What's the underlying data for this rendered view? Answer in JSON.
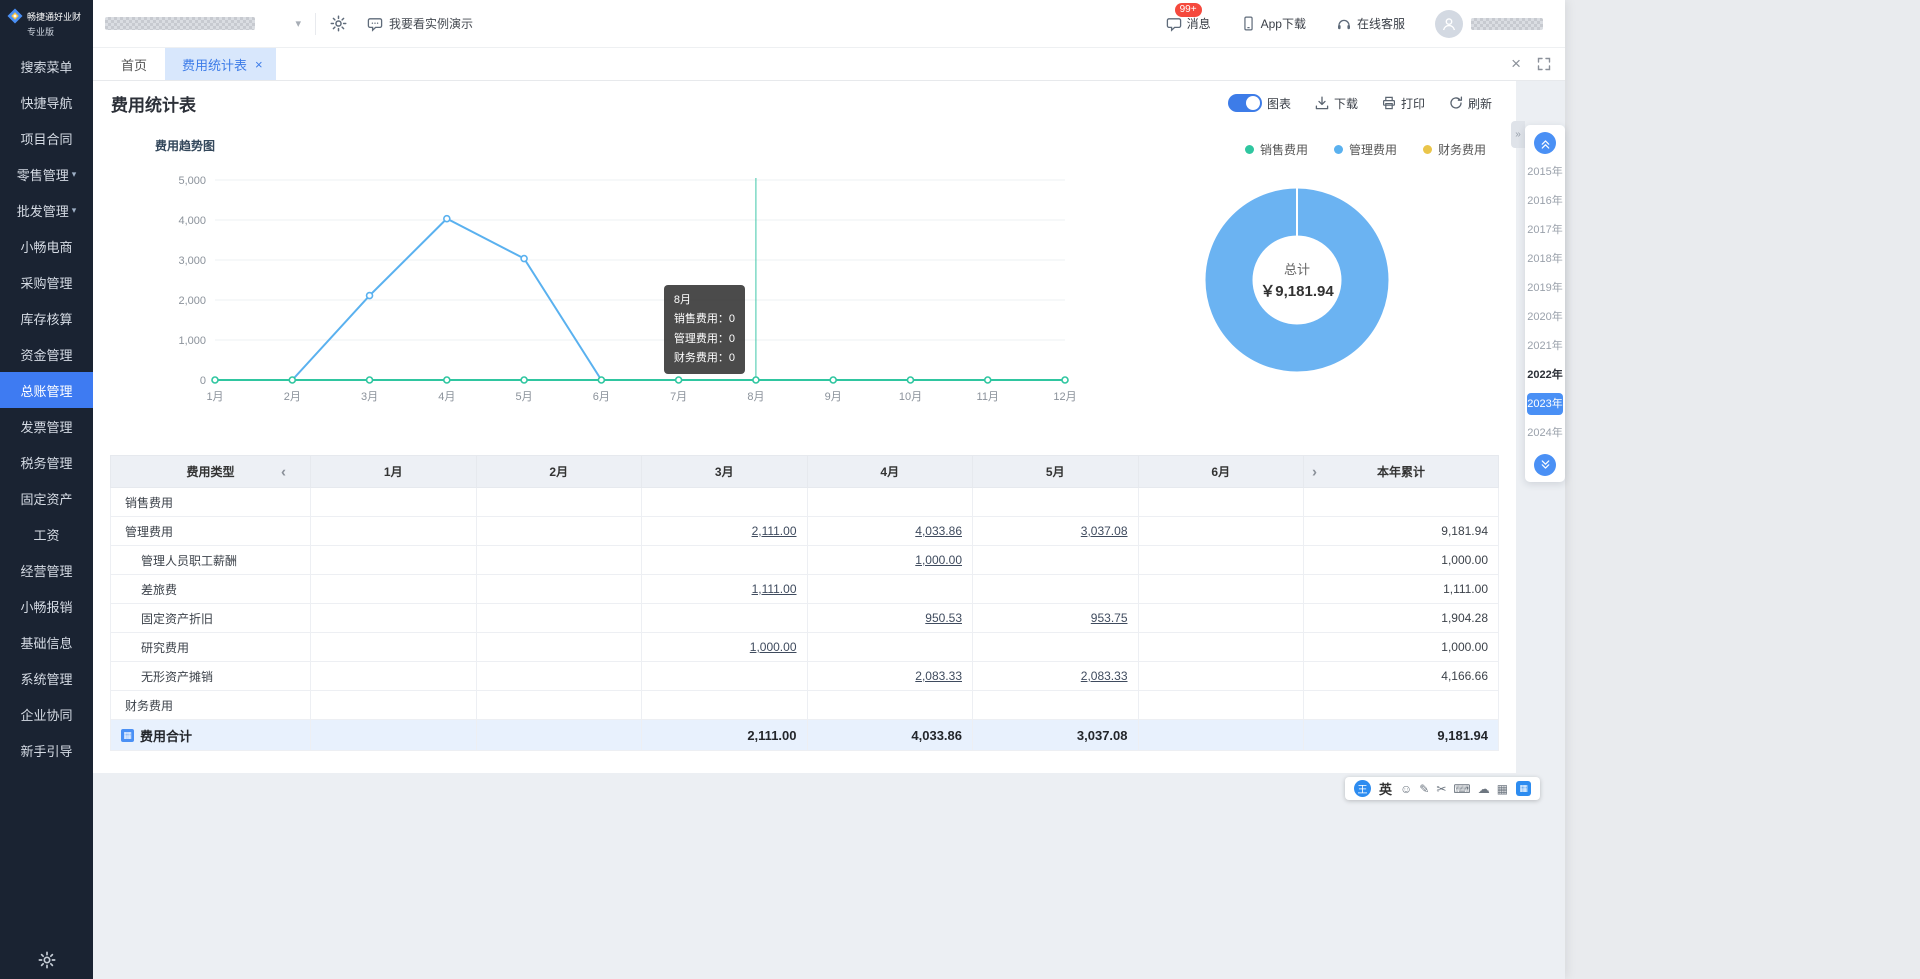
{
  "brand": {
    "name": "畅捷通好业财",
    "edition": "专业版"
  },
  "sidebar": {
    "items": [
      {
        "label": "搜索菜单"
      },
      {
        "label": "快捷导航"
      },
      {
        "label": "项目合同"
      },
      {
        "label": "零售管理",
        "expandable": true
      },
      {
        "label": "批发管理",
        "expandable": true
      },
      {
        "label": "小畅电商"
      },
      {
        "label": "采购管理"
      },
      {
        "label": "库存核算"
      },
      {
        "label": "资金管理"
      },
      {
        "label": "总账管理",
        "active": true
      },
      {
        "label": "发票管理"
      },
      {
        "label": "税务管理"
      },
      {
        "label": "固定资产"
      },
      {
        "label": "工资"
      },
      {
        "label": "经营管理"
      },
      {
        "label": "小畅报销"
      },
      {
        "label": "基础信息"
      },
      {
        "label": "系统管理"
      },
      {
        "label": "企业协同"
      },
      {
        "label": "新手引导"
      }
    ]
  },
  "topbar": {
    "demo_label": "我要看实例演示",
    "messages_label": "消息",
    "messages_badge": "99+",
    "app_download_label": "App下载",
    "online_support_label": "在线客服"
  },
  "tabs": {
    "items": [
      {
        "label": "首页",
        "active": false,
        "closable": false
      },
      {
        "label": "费用统计表",
        "active": true,
        "closable": true
      }
    ]
  },
  "page": {
    "title": "费用统计表",
    "toolbar": {
      "chart_toggle": "图表",
      "download": "下载",
      "print": "打印",
      "refresh": "刷新"
    }
  },
  "chart_data": {
    "type": "line",
    "title": "费用趋势图",
    "categories": [
      "1月",
      "2月",
      "3月",
      "4月",
      "5月",
      "6月",
      "7月",
      "8月",
      "9月",
      "10月",
      "11月",
      "12月"
    ],
    "series": [
      {
        "name": "销售费用",
        "color": "#2fc6a0",
        "values": [
          0,
          0,
          0,
          0,
          0,
          0,
          0,
          0,
          0,
          0,
          0,
          0
        ]
      },
      {
        "name": "管理费用",
        "color": "#5ab1ef",
        "values": [
          0,
          0,
          2111.0,
          4033.86,
          3037.08,
          0,
          0,
          0,
          0,
          0,
          0,
          0
        ]
      },
      {
        "name": "财务费用",
        "color": "#eac54a",
        "values": [
          0,
          0,
          0,
          0,
          0,
          0,
          0,
          0,
          0,
          0,
          0,
          0
        ]
      }
    ],
    "ylim": [
      0,
      5000
    ],
    "yticks": [
      "0",
      "1,000",
      "2,000",
      "3,000",
      "4,000",
      "5,000"
    ],
    "grid": true,
    "legend_position": "top-right",
    "tooltip": {
      "month_index": 7,
      "title": "8月",
      "lines": [
        "销售费用：0",
        "管理费用：0",
        "财务费用：0"
      ]
    }
  },
  "donut": {
    "type": "pie",
    "center_label": "总计",
    "center_value": "￥9,181.94",
    "slices": [
      {
        "name": "管理费用",
        "value": 9181.94,
        "color": "#6bb3f2"
      }
    ]
  },
  "year_panel": {
    "years": [
      "2015年",
      "2016年",
      "2017年",
      "2018年",
      "2019年",
      "2020年",
      "2021年",
      "2022年",
      "2023年",
      "2024年"
    ],
    "selected": "2023年",
    "highlighted": "2022年"
  },
  "table": {
    "headers": [
      "费用类型",
      "1月",
      "2月",
      "3月",
      "4月",
      "5月",
      "6月",
      "本年累计"
    ],
    "rows": [
      {
        "label": "销售费用",
        "indent": 0,
        "months": [
          "",
          "",
          "",
          "",
          "",
          ""
        ],
        "total": ""
      },
      {
        "label": "管理费用",
        "indent": 0,
        "months": [
          "",
          "",
          "2,111.00",
          "4,033.86",
          "3,037.08",
          ""
        ],
        "total": "9,181.94"
      },
      {
        "label": "管理人员职工薪酬",
        "indent": 1,
        "months": [
          "",
          "",
          "",
          "1,000.00",
          "",
          ""
        ],
        "total": "1,000.00"
      },
      {
        "label": "差旅费",
        "indent": 1,
        "months": [
          "",
          "",
          "1,111.00",
          "",
          "",
          ""
        ],
        "total": "1,111.00"
      },
      {
        "label": "固定资产折旧",
        "indent": 1,
        "months": [
          "",
          "",
          "",
          "950.53",
          "953.75",
          ""
        ],
        "total": "1,904.28"
      },
      {
        "label": "研究费用",
        "indent": 1,
        "months": [
          "",
          "",
          "1,000.00",
          "",
          "",
          ""
        ],
        "total": "1,000.00"
      },
      {
        "label": "无形资产摊销",
        "indent": 1,
        "months": [
          "",
          "",
          "",
          "2,083.33",
          "2,083.33",
          ""
        ],
        "total": "4,166.66"
      },
      {
        "label": "财务费用",
        "indent": 0,
        "months": [
          "",
          "",
          "",
          "",
          "",
          ""
        ],
        "total": ""
      }
    ],
    "footer": {
      "label": "费用合计",
      "months": [
        "",
        "",
        "2,111.00",
        "4,033.86",
        "3,037.08",
        ""
      ],
      "total": "9,181.94"
    }
  },
  "ime": {
    "logo_char": "王",
    "mode": "英"
  },
  "icons": {
    "caret_down": "▾",
    "close": "×",
    "pager_prev": "‹",
    "pager_next": "›",
    "collapse_handle": "»",
    "sum_grid": "▦",
    "ime_icons": [
      "☺",
      "✎",
      "✂",
      "⌨",
      "☁",
      "▦"
    ]
  },
  "colors": {
    "accent_blue": "#3d7ce8",
    "sidebar_bg": "#1a2332",
    "badge_red": "#f5493d",
    "year_selected_bg": "#4a90f5",
    "footer_row_bg": "#e8f1fd"
  }
}
